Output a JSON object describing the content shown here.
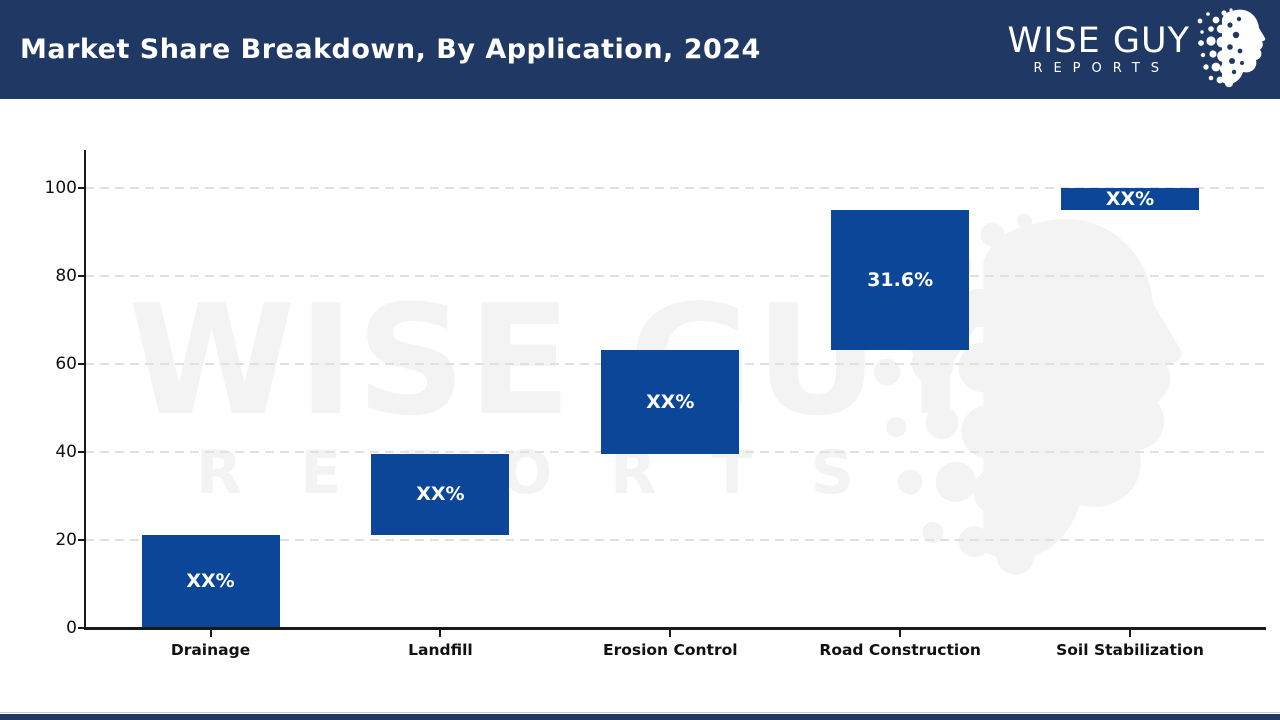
{
  "header": {
    "title": "Market Share Breakdown, By Application, 2024",
    "logo": {
      "line1": "WISE GUY",
      "line2": "REPORTS"
    }
  },
  "watermark": {
    "line1": "WISE GUY",
    "line2": "REPORTS"
  },
  "chart_data": {
    "type": "bar",
    "subtype": "waterfall-floating-bars",
    "title": "Market Share Breakdown, By Application, 2024",
    "categories": [
      "Drainage",
      "Landfill",
      "Erosion Control",
      "Road Construction",
      "Soil Stabilization"
    ],
    "segments": [
      {
        "category": "Drainage",
        "start": 0,
        "end": 21.2,
        "label": "XX%"
      },
      {
        "category": "Landfill",
        "start": 21.2,
        "end": 39.6,
        "label": "XX%"
      },
      {
        "category": "Erosion Control",
        "start": 39.6,
        "end": 63.2,
        "label": "XX%"
      },
      {
        "category": "Road Construction",
        "start": 63.2,
        "end": 94.8,
        "label": "31.6%"
      },
      {
        "category": "Soil Stabilization",
        "start": 94.8,
        "end": 100,
        "label": "XX%"
      }
    ],
    "yticks": [
      0,
      20,
      40,
      60,
      80,
      100
    ],
    "ylim": [
      0,
      105
    ],
    "xlabel": "",
    "ylabel": "",
    "grid": {
      "horizontal": true,
      "style": "dashed",
      "color": "#e1e1e1"
    },
    "legend": "none",
    "bar_color": "#0B4699",
    "bar_label_color": "#FFFFFF"
  },
  "colors": {
    "header_bg": "#203864",
    "footer_bg": "#203864",
    "bar": "#0B4699",
    "axis": "#1A1A1A",
    "grid": "#E1E1E1",
    "watermark": "#F3F3F3",
    "title_text": "#FFFFFF"
  }
}
